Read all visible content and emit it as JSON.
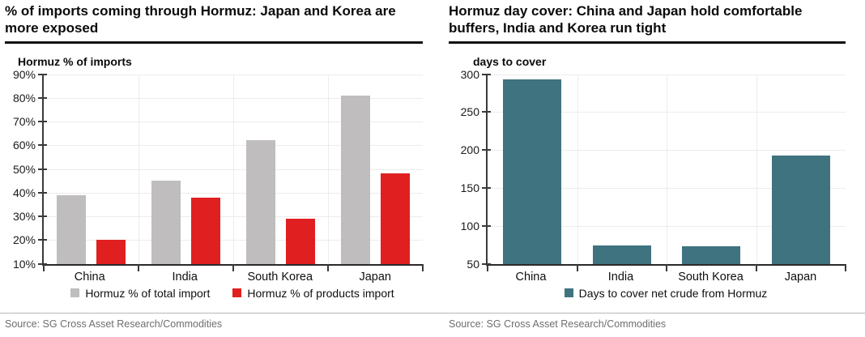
{
  "chart_data": [
    {
      "type": "bar",
      "title": "% of imports coming through Hormuz: Japan and Korea are more exposed",
      "ylabel": "Hormuz % of imports",
      "xlabel": "",
      "source": "Source: SG Cross Asset Research/Commodities",
      "categories": [
        "China",
        "India",
        "South Korea",
        "Japan"
      ],
      "series": [
        {
          "name": "Hormuz % of total import",
          "color": "#bfbdbd",
          "values": [
            39,
            45,
            62,
            81
          ]
        },
        {
          "name": "Hormuz % of products import",
          "color": "#e02020",
          "values": [
            20,
            38,
            29,
            48
          ]
        }
      ],
      "ylim": [
        10,
        90
      ],
      "yticks": [
        {
          "value": 90,
          "label": "90%"
        },
        {
          "value": 80,
          "label": "80%"
        },
        {
          "value": 70,
          "label": "70%"
        },
        {
          "value": 60,
          "label": "60%"
        },
        {
          "value": 50,
          "label": "50%"
        },
        {
          "value": 40,
          "label": "40%"
        },
        {
          "value": 30,
          "label": "30%"
        },
        {
          "value": 20,
          "label": "20%"
        },
        {
          "value": 10,
          "label": "10%"
        }
      ],
      "grid": true,
      "legend_position": "bottom"
    },
    {
      "type": "bar",
      "title": "Hormuz day cover: China and Japan hold comfortable buffers, India and Korea run tight",
      "ylabel": "days to cover",
      "xlabel": "",
      "source": "Source: SG Cross Asset Research/Commodities",
      "categories": [
        "China",
        "India",
        "South Korea",
        "Japan"
      ],
      "series": [
        {
          "name": "Days to cover net crude from Hormuz",
          "color": "#3e737f",
          "values": [
            293,
            74,
            73,
            193
          ]
        }
      ],
      "ylim": [
        50,
        300
      ],
      "yticks": [
        {
          "value": 300,
          "label": "300"
        },
        {
          "value": 250,
          "label": "250"
        },
        {
          "value": 200,
          "label": "200"
        },
        {
          "value": 150,
          "label": "150"
        },
        {
          "value": 100,
          "label": "100"
        },
        {
          "value": 50,
          "label": "50"
        }
      ],
      "grid": true,
      "legend_position": "bottom"
    }
  ]
}
